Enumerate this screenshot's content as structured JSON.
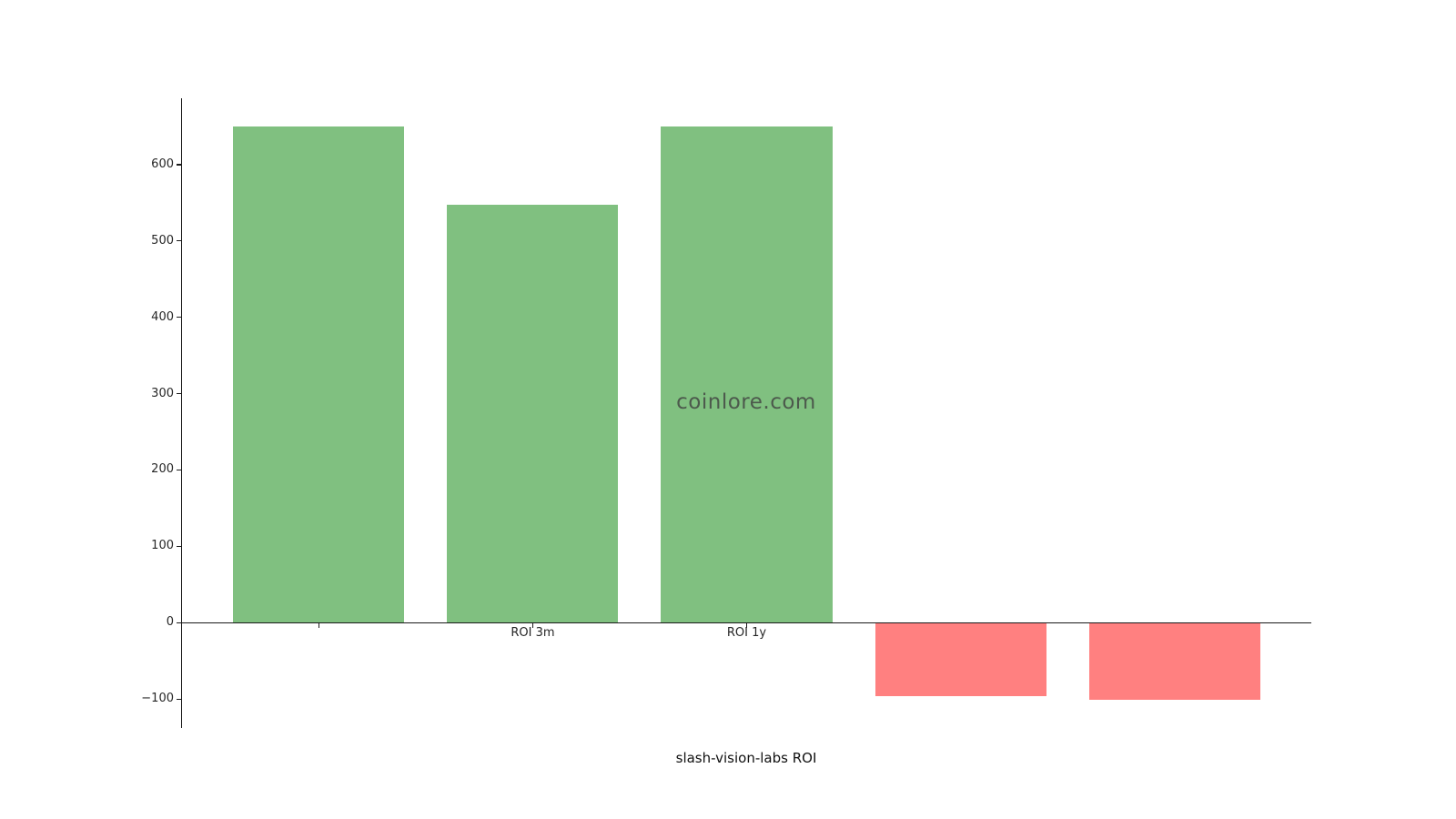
{
  "watermark": {
    "text": "coinlore.com",
    "color": "#404040"
  },
  "chart_data": {
    "type": "bar",
    "title": "slash-vision-labs ROI",
    "categories": [
      "",
      "ROI 3m",
      "ROI 1y",
      "",
      ""
    ],
    "values": [
      650,
      548,
      650,
      -96,
      -100
    ],
    "positive_color": "#80c080",
    "negative_color": "#ff8080",
    "axis_color": "#1a1a1a",
    "tick_label_color": "#262626",
    "y_ticks": [
      600,
      500,
      400,
      300,
      200,
      100,
      0,
      -100
    ],
    "ylim": [
      -138,
      687
    ],
    "xlim": [
      -0.64,
      4.64
    ],
    "x_tick_indices": [
      0,
      1,
      2
    ],
    "grid": false,
    "legend": "none",
    "xlabel": "",
    "ylabel": ""
  }
}
